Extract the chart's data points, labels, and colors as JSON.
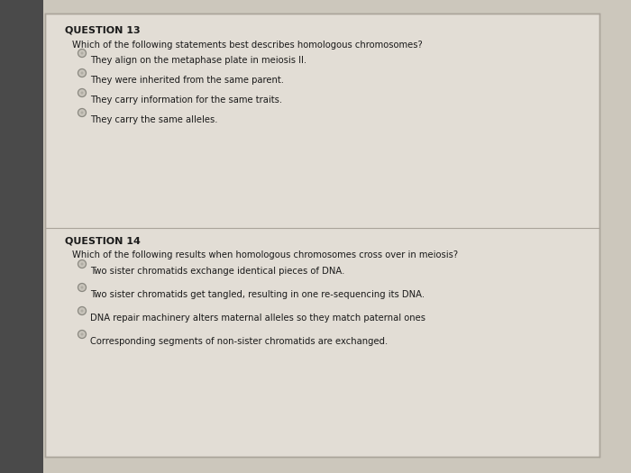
{
  "bg_color": "#ccc7bc",
  "card_color": "#e2ddd5",
  "border_color": "#aaa49a",
  "text_color": "#1a1a1a",
  "q13_title": "QUESTION 13",
  "q13_question": "Which of the following statements best describes homologous chromosomes?",
  "q13_options": [
    "They align on the metaphase plate in meiosis II.",
    "They were inherited from the same parent.",
    "They carry information for the same traits.",
    "They carry the same alleles."
  ],
  "q14_title": "QUESTION 14",
  "q14_question": "Which of the following results when homologous chromosomes cross over in meiosis?",
  "q14_options": [
    "Two sister chromatids exchange identical pieces of DNA.",
    "Two sister chromatids get tangled, resulting in one re-sequencing its DNA.",
    "DNA repair machinery alters maternal alleles so they match paternal ones",
    "Corresponding segments of non-sister chromatids are exchanged."
  ],
  "radio_color": "#8a8880",
  "radio_inner": "#c8c4bb",
  "title_fontsize": 8.0,
  "question_fontsize": 7.2,
  "option_fontsize": 7.2
}
